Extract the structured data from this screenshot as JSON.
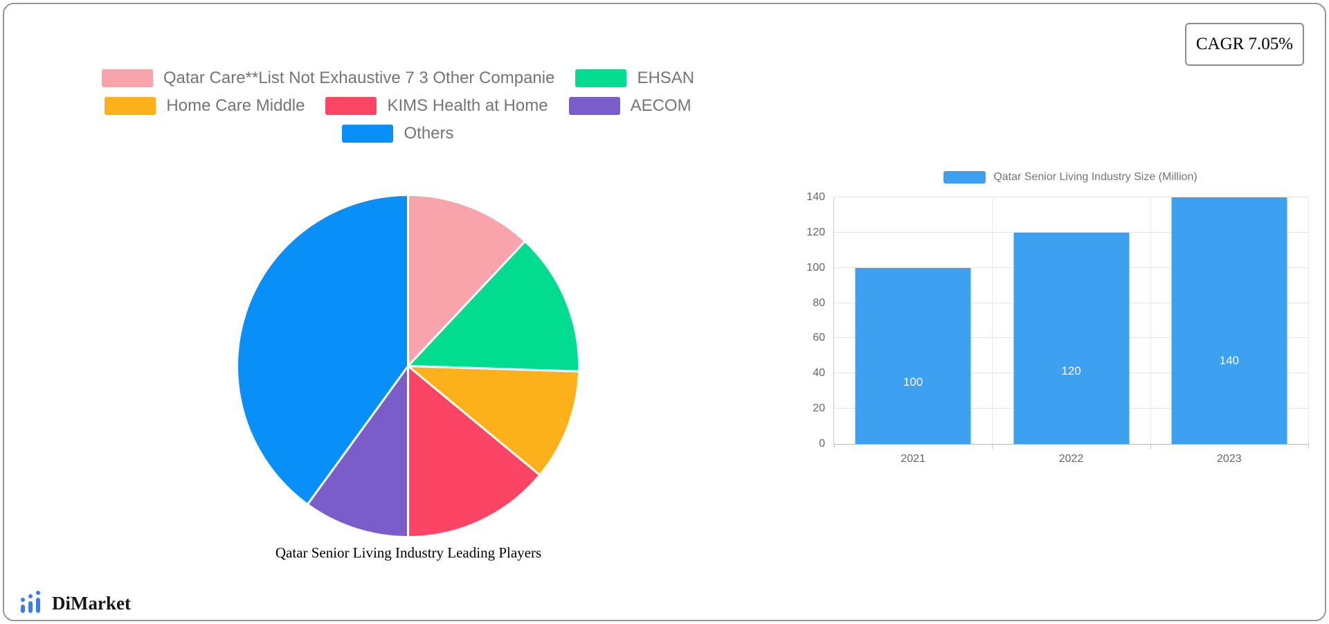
{
  "badge": {
    "cagr": "CAGR 7.05%"
  },
  "branding": {
    "name": "DiMarket",
    "logo_color": "#3B7DE8"
  },
  "chart_data": [
    {
      "type": "pie",
      "title": "Qatar Senior Living Industry Leading Players",
      "labels": [
        "Qatar Care**List Not Exhaustive 7 3 Other Companie",
        "EHSAN",
        "Home Care Middle",
        "KIMS Health at Home",
        "AECOM",
        "Others"
      ],
      "values": [
        12,
        13.5,
        10.5,
        14,
        10,
        40
      ],
      "unit": "%",
      "colors": [
        "#F9A3AB",
        "#02DC90",
        "#FCB11A",
        "#FC4465",
        "#7B5DC9",
        "#0890F8"
      ],
      "legend_rows": [
        [
          0,
          1
        ],
        [
          2,
          3,
          4
        ],
        [
          5
        ]
      ],
      "legend_position": "top",
      "slice_border_color": "#FFFFFF",
      "legend_text_color": "#757575",
      "start_angle_deg": -90,
      "direction": "clockwise"
    },
    {
      "type": "bar",
      "legend": "Qatar Senior Living Industry Size (Million)",
      "legend_position": "top",
      "categories": [
        "2021",
        "2022",
        "2023"
      ],
      "values": [
        100,
        120,
        140
      ],
      "bar_color": "#3DA0F0",
      "value_label_color": "#FFFFFF",
      "ylim": [
        0,
        140
      ],
      "yticks": [
        0,
        20,
        40,
        60,
        80,
        100,
        120,
        140
      ],
      "grid": true,
      "axis_label_color": "#666666"
    }
  ]
}
